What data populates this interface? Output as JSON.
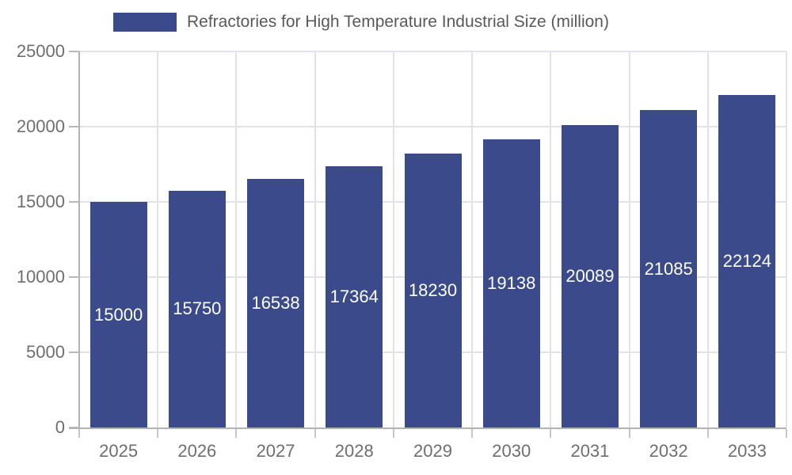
{
  "legend": {
    "label": "Refractories for High Temperature Industrial Size (million)",
    "swatch_color": "#3A4A8B"
  },
  "chart_data": {
    "type": "bar",
    "title": "Refractories for High Temperature Industrial Size (million)",
    "categories": [
      "2025",
      "2026",
      "2027",
      "2028",
      "2029",
      "2030",
      "2031",
      "2032",
      "2033"
    ],
    "values": [
      15000,
      15750,
      16538,
      17364,
      18230,
      19138,
      20089,
      21085,
      22124
    ],
    "xlabel": "",
    "ylabel": "",
    "ylim": [
      0,
      25000
    ],
    "yticks": [
      0,
      5000,
      10000,
      15000,
      20000,
      25000
    ],
    "grid": true,
    "legend_position": "top-left",
    "bar_color": "#3A4A8B",
    "bar_label_color": "#FFFFFF"
  },
  "colors": {
    "background": "#FFFFFF",
    "axis_line": "#B3B3B6",
    "gridline": "#E2E2E7",
    "tick_label": "#6E6E6E",
    "title_text": "#595959"
  }
}
